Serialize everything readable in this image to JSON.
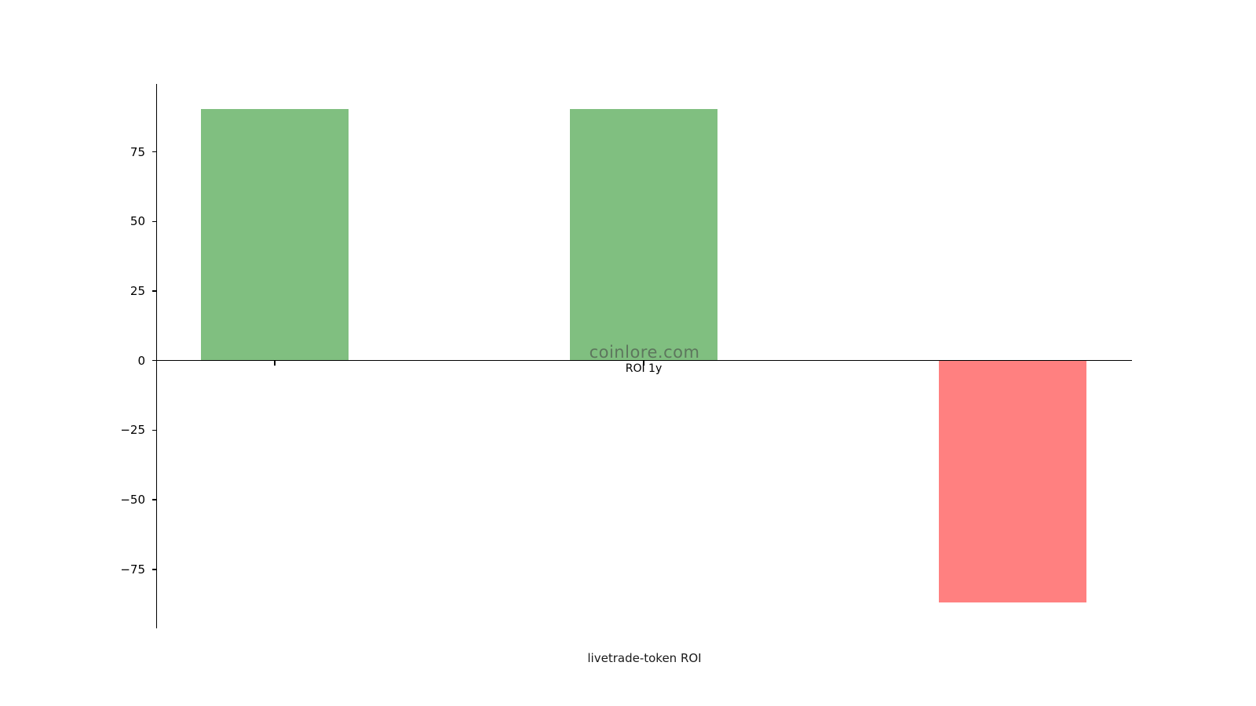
{
  "chart_data": {
    "type": "bar",
    "title": "livetrade-token ROI",
    "watermark": "coinlore.com",
    "categories": [
      "",
      "ROI 1y",
      ""
    ],
    "values": [
      90.5,
      90.5,
      -86.8
    ],
    "bar_colors": [
      "#80bf80",
      "#80bf80",
      "#ff8080"
    ],
    "positive_color": "#80bf80",
    "negative_color": "#ff8080",
    "yticks": [
      75,
      50,
      25,
      0,
      -25,
      -50,
      -75
    ],
    "ylim": [
      -96.2,
      99.4
    ],
    "xlabel": "",
    "ylabel": "",
    "grid": false,
    "legend_position": "none",
    "axis_color": "#000000",
    "tick_label_color": "#000000"
  }
}
